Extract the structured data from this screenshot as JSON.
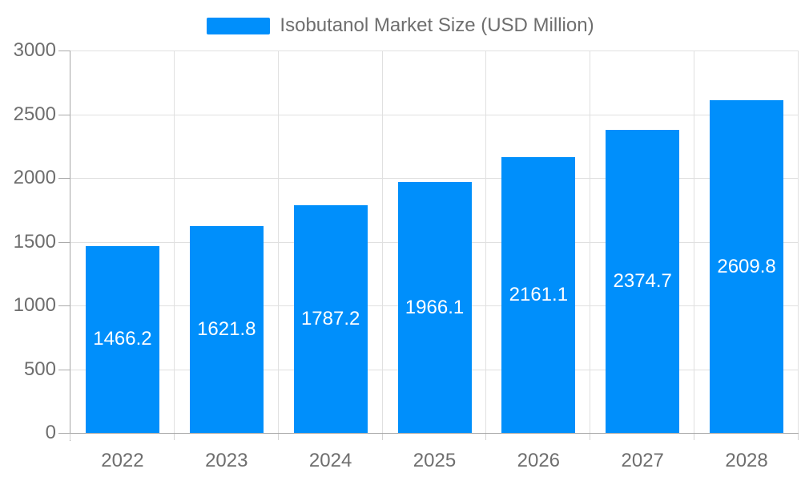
{
  "legend": {
    "label": "Isobutanol Market Size (USD Million)"
  },
  "chart_data": {
    "type": "bar",
    "title": "Isobutanol Market Size (USD Million)",
    "series": [
      {
        "name": "Isobutanol Market Size (USD Million)",
        "values": [
          1466.2,
          1621.8,
          1787.2,
          1966.1,
          2161.1,
          2374.7,
          2609.8
        ]
      }
    ],
    "categories": [
      "2022",
      "2023",
      "2024",
      "2025",
      "2026",
      "2027",
      "2028"
    ],
    "value_labels": [
      "1466.2",
      "1621.8",
      "1787.2",
      "1966.1",
      "2161.1",
      "2374.7",
      "2609.8"
    ],
    "xlabel": "",
    "ylabel": "",
    "ylim": [
      0,
      3000
    ],
    "ytick_step": 500,
    "ytick_labels": [
      "0",
      "500",
      "1000",
      "1500",
      "2000",
      "2500",
      "3000"
    ],
    "grid": "on",
    "legend_position": "top-center",
    "colors": {
      "bar": "#008FFB",
      "value_label": "#ffffff",
      "axis_text": "#6e6e6e",
      "gridline": "#e0e0e0",
      "axis_line": "#a6a6a6"
    }
  }
}
